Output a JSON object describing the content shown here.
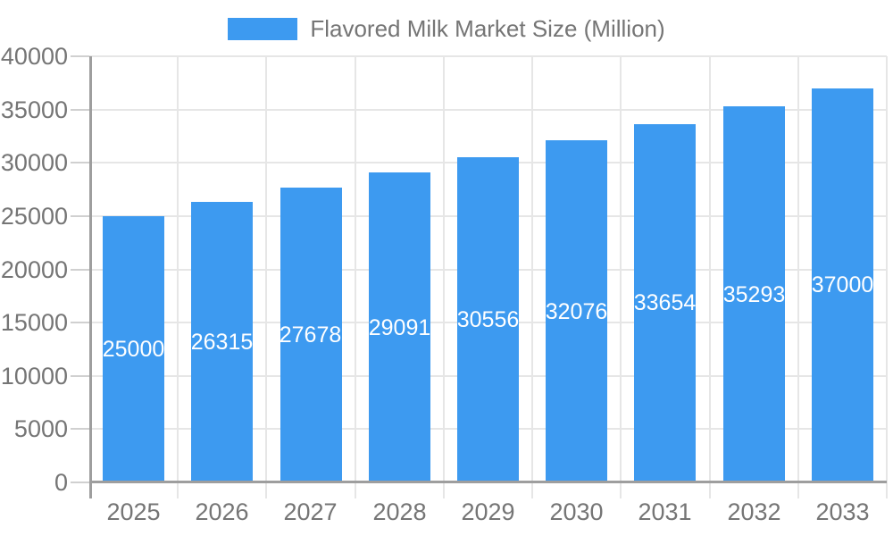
{
  "legend": {
    "label": "Flavored Milk Market Size (Million)"
  },
  "colors": {
    "bar": "#3D9AF0",
    "axis_line": "#9E9E9E",
    "grid_line": "#E6E6E6",
    "tick_line": "#D0D0D0",
    "tick_text": "#757575",
    "value_text": "#FFFFFF",
    "background": "#FFFFFF"
  },
  "chart_data": {
    "type": "bar",
    "title": "Flavored Milk Market Size (Million)",
    "series_name": "Flavored Milk Market Size (Million)",
    "categories": [
      "2025",
      "2026",
      "2027",
      "2028",
      "2029",
      "2030",
      "2031",
      "2032",
      "2033"
    ],
    "values": [
      25000,
      26315,
      27678,
      29091,
      30556,
      32076,
      33654,
      35293,
      37000
    ],
    "xlabel": "",
    "ylabel": "",
    "ylim": [
      0,
      40000
    ],
    "ytick_step": 5000,
    "ytick_labels": [
      "0",
      "5000",
      "10000",
      "15000",
      "20000",
      "25000",
      "30000",
      "35000",
      "40000"
    ],
    "grid": true,
    "legend_position": "top-center",
    "value_label_position": "inside-center"
  }
}
